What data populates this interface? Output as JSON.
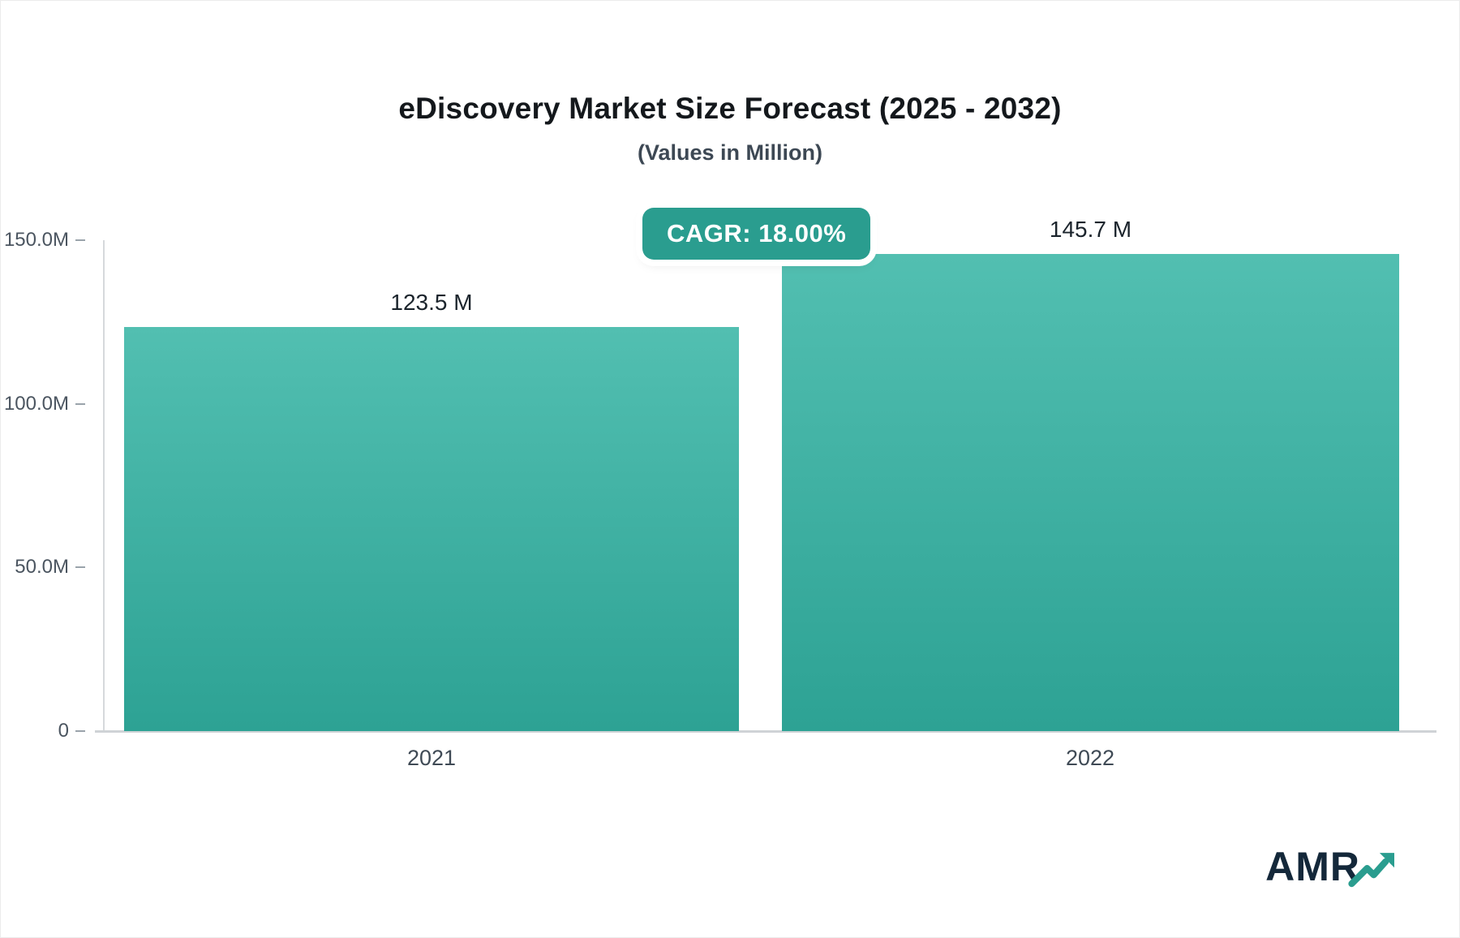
{
  "chart_data": {
    "type": "bar",
    "title": "eDiscovery Market Size Forecast (2025 - 2032)",
    "subtitle": "(Values in Million)",
    "categories": [
      "2021",
      "2022"
    ],
    "values": [
      123.5,
      145.7
    ],
    "value_labels": [
      "123.5 M",
      "145.7 M"
    ],
    "xlabel": "",
    "ylabel": "",
    "ylim": [
      0,
      150
    ],
    "yticks": [
      "150.0M",
      "100.0M",
      "50.0M",
      "0"
    ],
    "grid": false,
    "legend": false,
    "annotations": [
      {
        "text": "CAGR: 18.00%"
      }
    ]
  },
  "logo": {
    "text": "AMR",
    "icon": "trending-up-arrow-icon"
  },
  "colors": {
    "badge_bg": "#2a9d8f",
    "bar_top": "#52bfb1",
    "bar_bottom": "#2da294",
    "accent": "#2a9d8f",
    "title_text": "#14181c",
    "axis_text": "#4b5560",
    "logo_text": "#14283a"
  }
}
